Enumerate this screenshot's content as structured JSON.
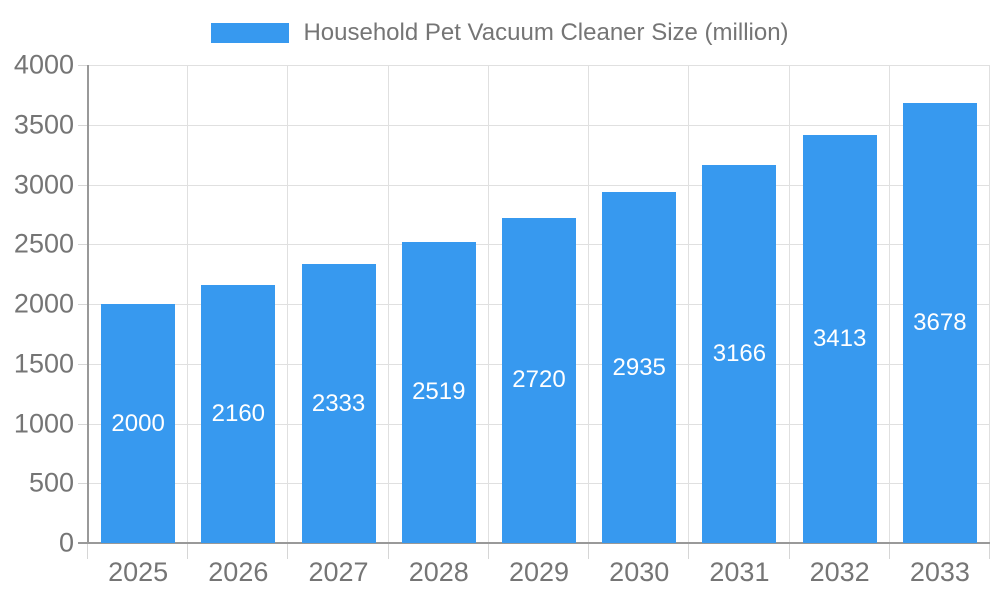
{
  "chart_data": {
    "type": "bar",
    "title": "Household Pet Vacuum Cleaner Size (million)",
    "categories": [
      "2025",
      "2026",
      "2027",
      "2028",
      "2029",
      "2030",
      "2031",
      "2032",
      "2033"
    ],
    "values": [
      2000,
      2160,
      2333,
      2519,
      2720,
      2935,
      3166,
      3413,
      3678
    ],
    "value_labels": [
      "2000",
      "2160",
      "2333",
      "2519",
      "2720",
      "2935",
      "3166",
      "3413",
      "3678"
    ],
    "xlabel": "",
    "ylabel": "",
    "ylim": [
      0,
      4000
    ],
    "ytick_step": 500,
    "yticks": [
      "0",
      "500",
      "1000",
      "1500",
      "2000",
      "2500",
      "3000",
      "3500",
      "4000"
    ],
    "grid": "on",
    "legend_position": "top-center",
    "colors": {
      "bar": "#3799EF",
      "grid": "#E0E0E0",
      "tick": "#D6D6D6",
      "axis": "#999999",
      "label_text": "#757575",
      "value_text": "#FFFFFF",
      "background": "#FFFFFF"
    }
  }
}
